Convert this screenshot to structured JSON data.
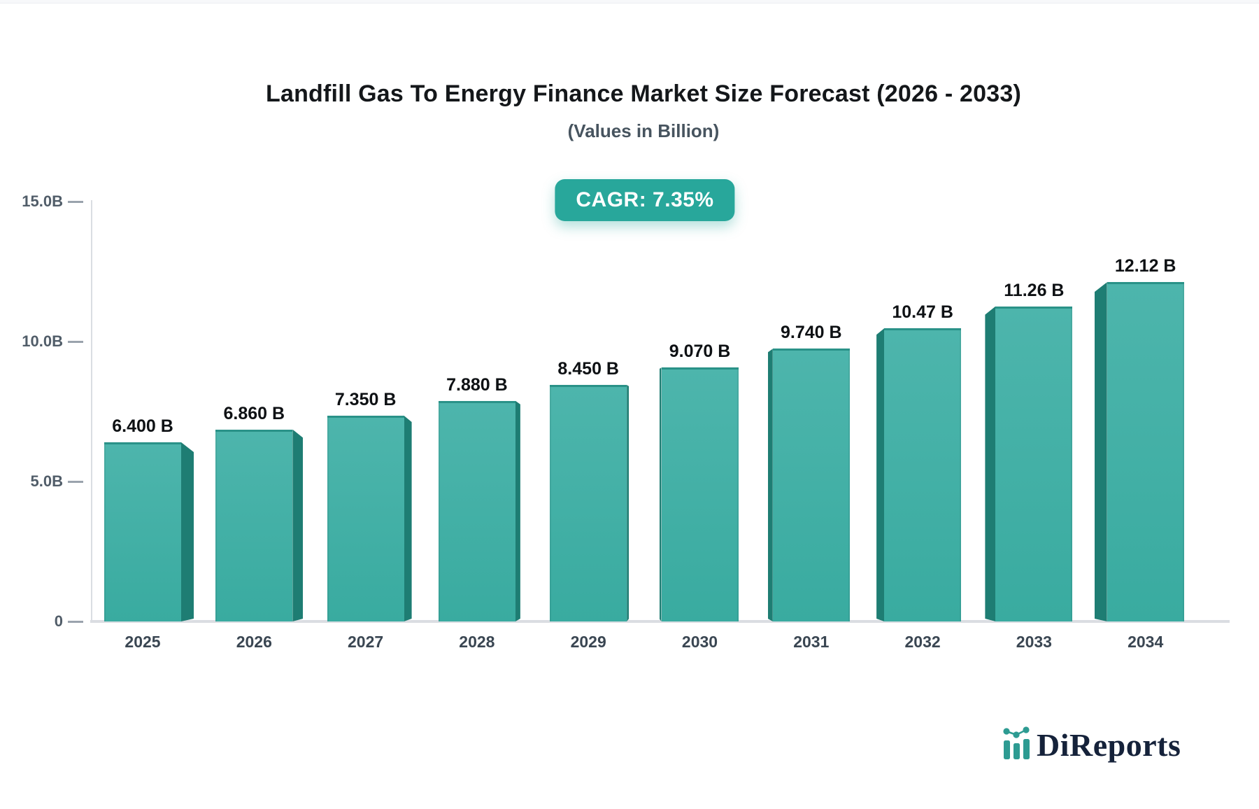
{
  "chart_data": {
    "type": "bar",
    "title": "Landfill Gas To Energy Finance Market Size Forecast (2026 - 2033)",
    "subtitle": "(Values in Billion)",
    "annotations": [
      {
        "role": "cagr-badge",
        "text": "CAGR: 7.35%"
      }
    ],
    "categories": [
      "2025",
      "2026",
      "2027",
      "2028",
      "2029",
      "2030",
      "2031",
      "2032",
      "2033",
      "2034"
    ],
    "values": [
      6.4,
      6.86,
      7.35,
      7.88,
      8.45,
      9.07,
      9.74,
      10.47,
      11.26,
      12.12
    ],
    "data_labels": [
      "6.400 B",
      "6.860 B",
      "7.350 B",
      "7.880 B",
      "8.450 B",
      "9.070 B",
      "9.740 B",
      "10.47 B",
      "11.26 B",
      "12.12 B"
    ],
    "unit": "Billion",
    "xlabel": "",
    "ylabel": "",
    "ylim": [
      0,
      15
    ],
    "y_ticks": [
      {
        "label": "15.0B",
        "value": 15
      },
      {
        "label": "10.0B",
        "value": 10
      },
      {
        "label": "5.0B",
        "value": 5
      },
      {
        "label": "0",
        "value": 0
      }
    ],
    "grid": false,
    "legend": false,
    "colors": {
      "bar_face_top": "#4DB5AC",
      "bar_face_bottom": "#39ABA0",
      "bar_top_edge": "#2A9288",
      "bar_side": "#1E7D73",
      "accent": "#28A79B"
    }
  },
  "footer": {
    "brand": "DiReports"
  }
}
